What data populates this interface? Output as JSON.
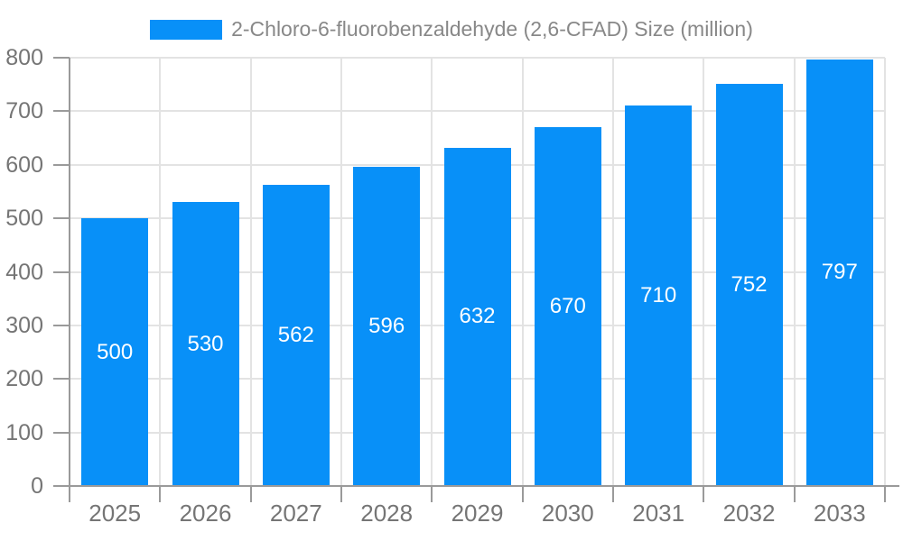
{
  "legend": {
    "label": "2-Chloro-6-fluorobenzaldehyde (2,6-CFAD) Size (million)"
  },
  "chart_data": {
    "type": "bar",
    "title": "2-Chloro-6-fluorobenzaldehyde (2,6-CFAD) Size (million)",
    "categories": [
      "2025",
      "2026",
      "2027",
      "2028",
      "2029",
      "2030",
      "2031",
      "2032",
      "2033"
    ],
    "values": [
      500,
      530,
      562,
      596,
      632,
      670,
      710,
      752,
      797
    ],
    "value_labels": [
      "500",
      "530",
      "562",
      "596",
      "632",
      "670",
      "710",
      "752",
      "797"
    ],
    "xlabel": "",
    "ylabel": "",
    "ylim": [
      0,
      800
    ],
    "yticks": [
      0,
      100,
      200,
      300,
      400,
      500,
      600,
      700,
      800
    ],
    "grid": true,
    "legend_position": "top",
    "colors": {
      "bar": "#0890f8",
      "axis": "#9a9a9a",
      "grid": "#e3e3e3",
      "tick_label": "#757575",
      "title_text": "#888888",
      "value_label": "#ffffff",
      "background": "#ffffff"
    }
  }
}
